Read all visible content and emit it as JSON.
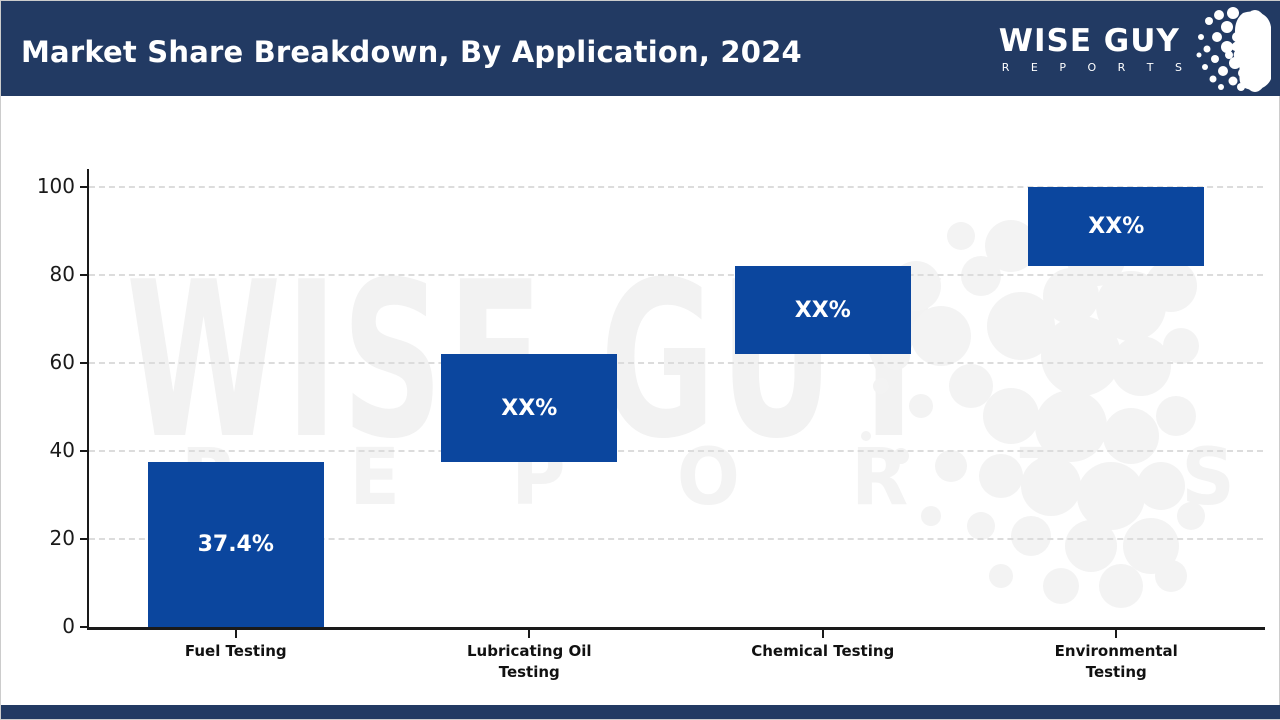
{
  "header": {
    "title": "Market Share Breakdown, By Application, 2024",
    "logo": {
      "wordmark": "WISE GUY",
      "subtext": "R E P O R T S"
    },
    "bg_color": "#223A63"
  },
  "watermark": {
    "line1": "WISE GUY",
    "line2": "R E P O R T S"
  },
  "chart_data": {
    "type": "bar",
    "variant": "waterfall",
    "title": "Market Share Breakdown, By Application, 2024",
    "categories": [
      "Fuel Testing",
      "Lubricating Oil Testing",
      "Chemical Testing",
      "Environmental Testing"
    ],
    "series": [
      {
        "name": "Market Share",
        "starts": [
          0,
          37.4,
          62,
          82
        ],
        "ends": [
          37.4,
          62,
          82,
          100
        ],
        "labels": [
          "37.4%",
          "XX%",
          "XX%",
          "XX%"
        ]
      }
    ],
    "yticks": [
      0,
      20,
      40,
      60,
      80,
      100
    ],
    "ylim": [
      0,
      105
    ],
    "xlabel": "",
    "ylabel": "",
    "grid": "horizontal-dashed",
    "legend": "none",
    "bar_color": "#0B469E",
    "bar_label_color": "#FFFFFF",
    "axis_color": "#1a1a1a",
    "gridline_color": "#dcdcdc"
  }
}
